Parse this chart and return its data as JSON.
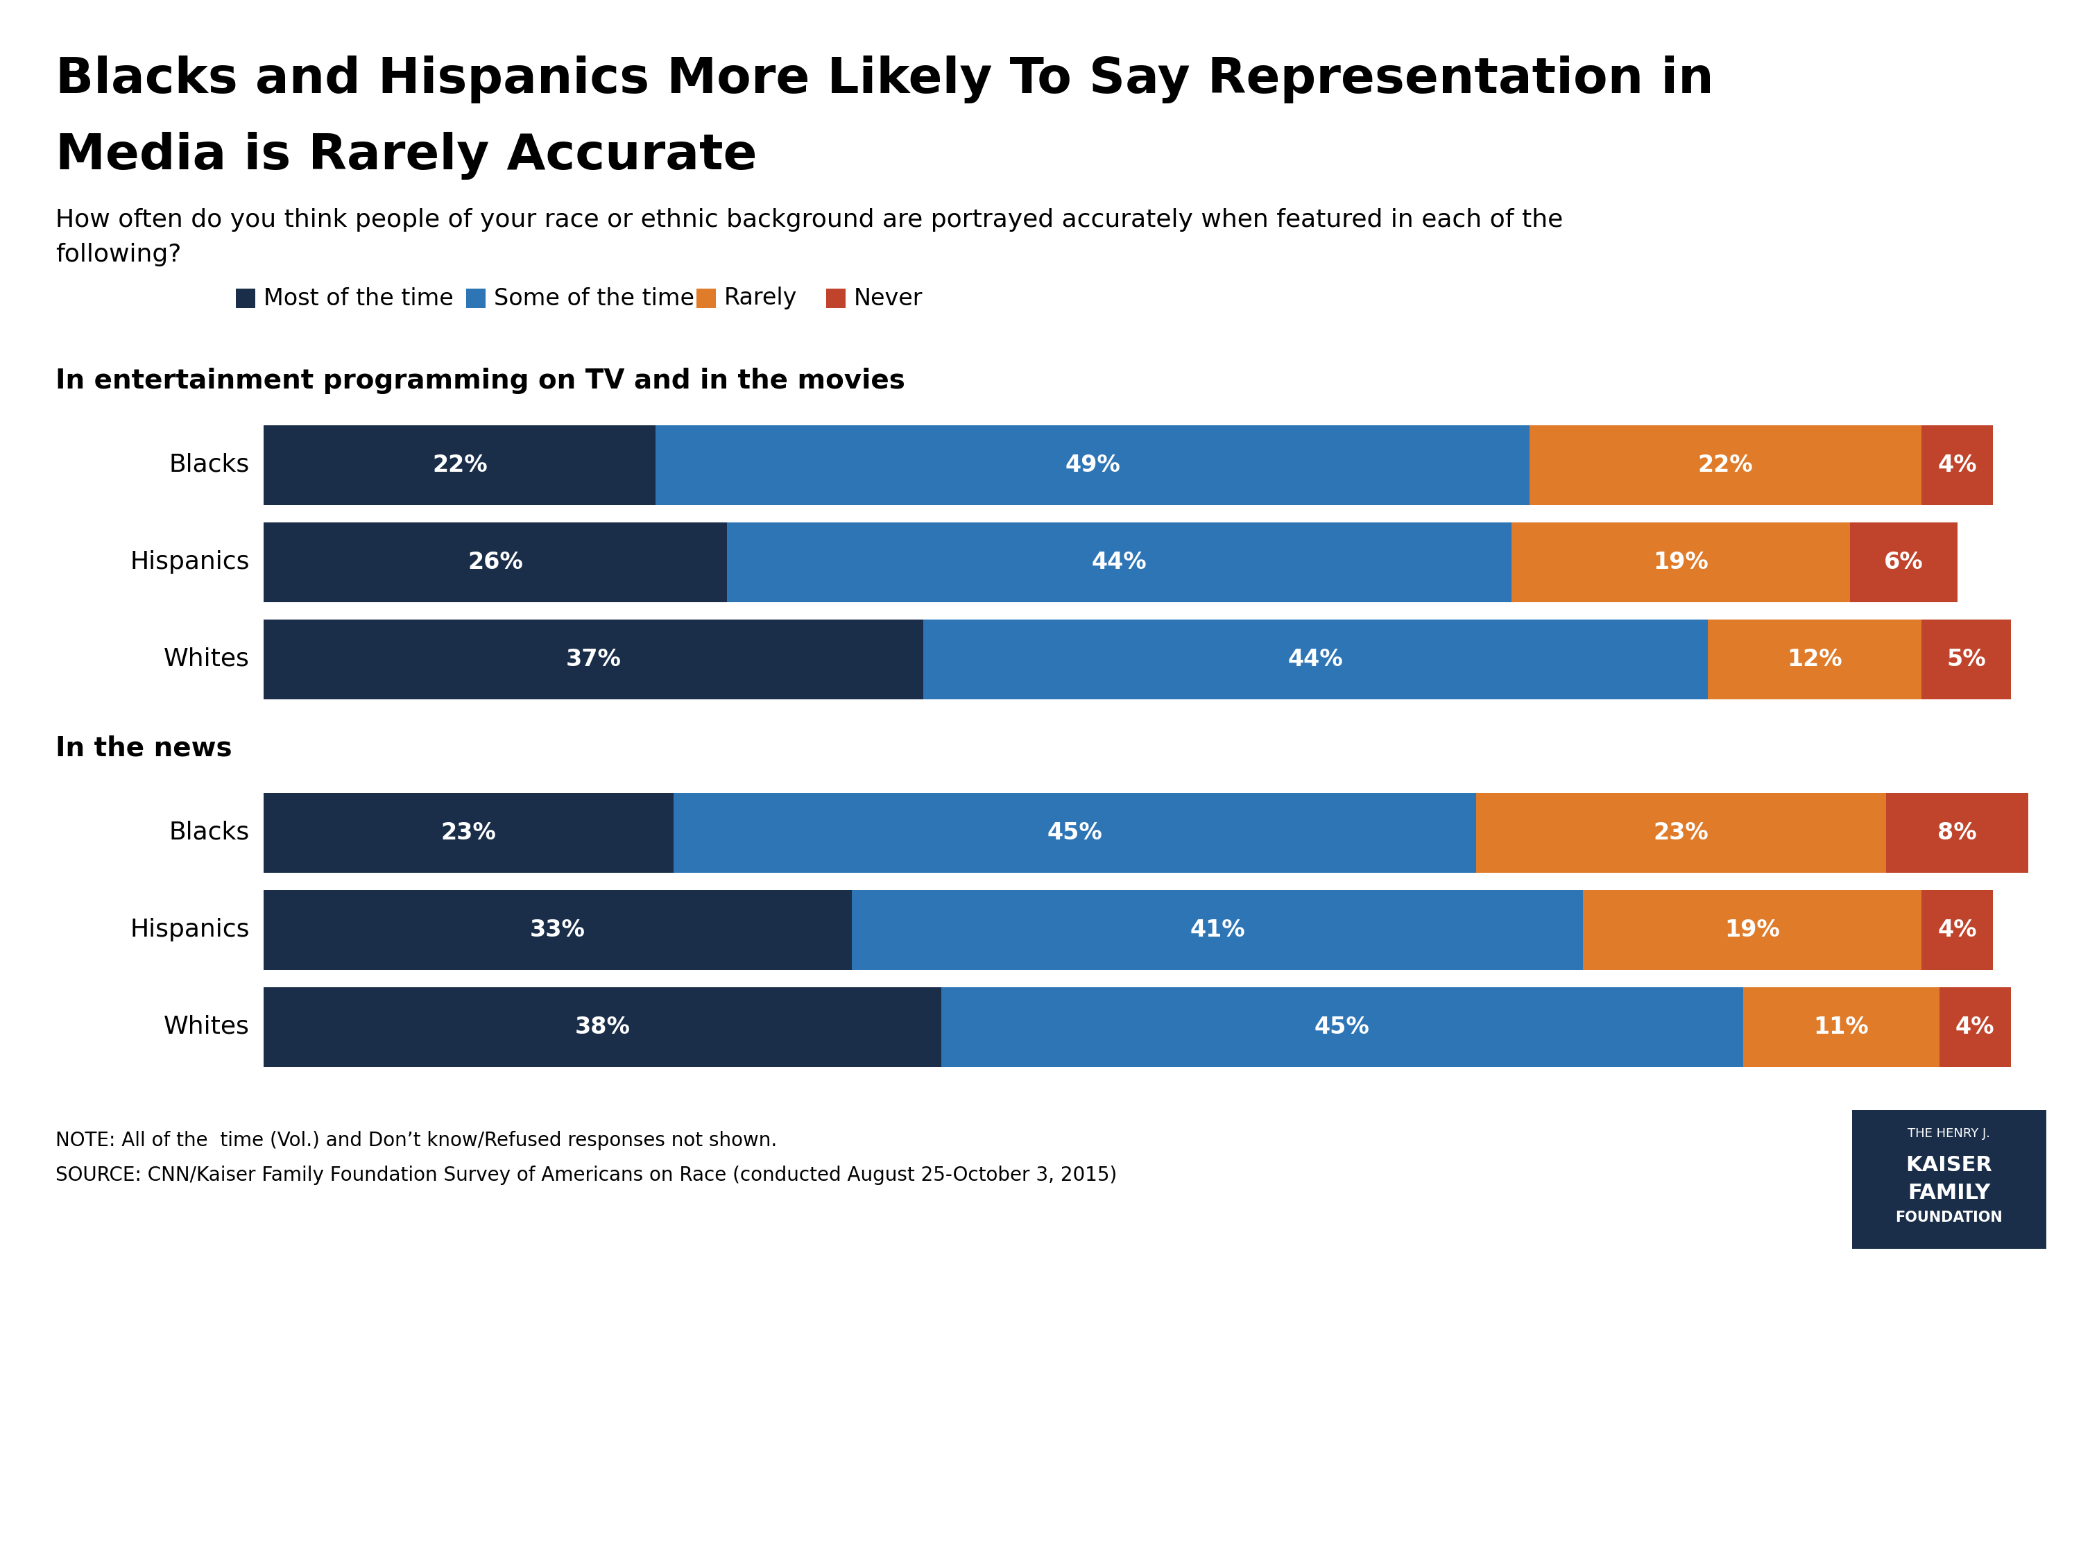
{
  "title_line1": "Blacks and Hispanics More Likely To Say Representation in",
  "title_line2": "Media is Rarely Accurate",
  "question_line1": "How often do you think people of your race or ethnic background are portrayed accurately when featured in each of the",
  "question_line2": "following?",
  "section1_label": "In entertainment programming on TV and in the movies",
  "section2_label": "In the news",
  "categories": [
    "Blacks",
    "Hispanics",
    "Whites"
  ],
  "legend_labels": [
    "Most of the time",
    "Some of the time",
    "Rarely",
    "Never"
  ],
  "colors": {
    "most": "#1a2e4a",
    "some": "#2e75b6",
    "rarely": "#e07b2a",
    "never": "#c0442b"
  },
  "section1_data": {
    "Blacks": [
      22,
      49,
      22,
      4
    ],
    "Hispanics": [
      26,
      44,
      19,
      6
    ],
    "Whites": [
      37,
      44,
      12,
      5
    ]
  },
  "section2_data": {
    "Blacks": [
      23,
      45,
      23,
      8
    ],
    "Hispanics": [
      33,
      41,
      19,
      4
    ],
    "Whites": [
      38,
      45,
      11,
      4
    ]
  },
  "note": "NOTE: All of the  time (Vol.) and Don’t know/Refused responses not shown.",
  "source": "SOURCE: CNN/Kaiser Family Foundation Survey of Americans on Race (conducted August 25-October 3, 2015)",
  "bg_color": "#ffffff",
  "title_fontsize": 52,
  "subtitle_fontsize": 26,
  "section_label_fontsize": 28,
  "category_fontsize": 26,
  "bar_label_fontsize": 24,
  "legend_fontsize": 24,
  "note_fontsize": 20,
  "logo_text1": "THE HENRY J.",
  "logo_text2": "KAISER",
  "logo_text3": "FAMILY",
  "logo_text4": "FOUNDATION",
  "logo_color": "#1a2e4a"
}
